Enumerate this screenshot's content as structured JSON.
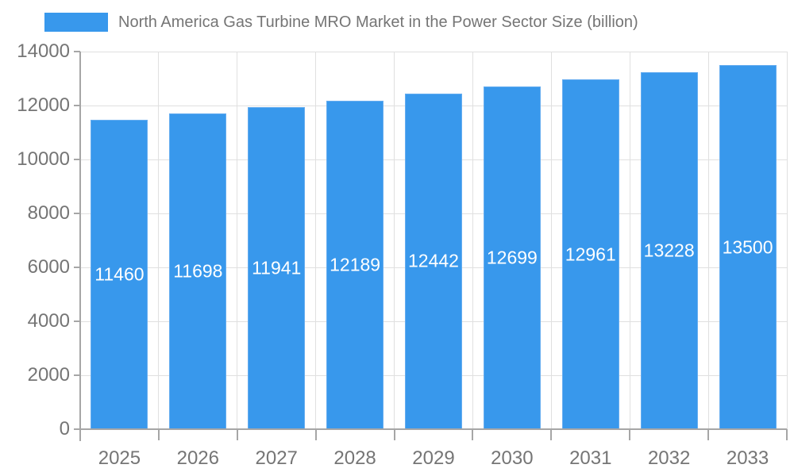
{
  "legend": {
    "label": "North America Gas Turbine MRO Market in the Power Sector Size (billion)"
  },
  "chart_data": {
    "type": "bar",
    "title": "North America Gas Turbine MRO Market in the Power Sector Size (billion)",
    "categories": [
      "2025",
      "2026",
      "2027",
      "2028",
      "2029",
      "2030",
      "2031",
      "2032",
      "2033"
    ],
    "values": [
      11460,
      11698,
      11941,
      12189,
      12442,
      12699,
      12961,
      13228,
      13500
    ],
    "xlabel": "",
    "ylabel": "",
    "ylim": [
      0,
      14000
    ],
    "yticks": [
      0,
      2000,
      4000,
      6000,
      8000,
      10000,
      12000,
      14000
    ],
    "grid": true,
    "legend_position": "top-left",
    "value_label_style": "white-centered-inside-bar"
  },
  "colors": {
    "bar": "#3898EC",
    "bar_border": "#66ADF0",
    "axis": "#A6A6A6",
    "grid": "#E0E0E0",
    "label_text": "#757575",
    "value_text": "#FFFFFF",
    "background": "#FFFFFF"
  }
}
